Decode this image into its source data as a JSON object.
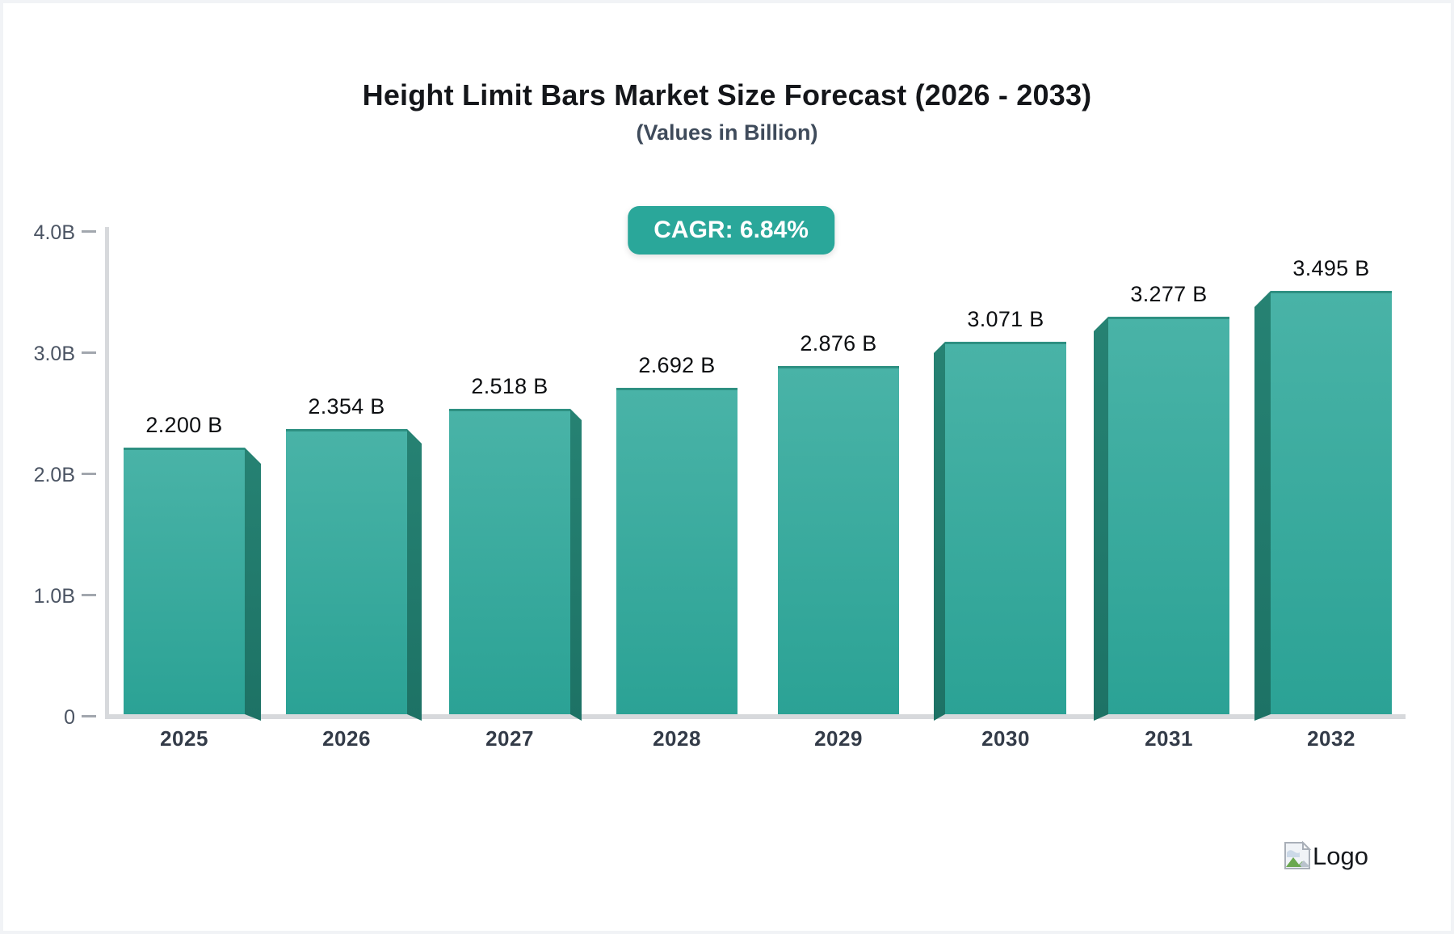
{
  "chart_data": {
    "type": "bar",
    "title": "Height Limit Bars Market Size Forecast (2026 - 2033)",
    "subtitle": "(Values in Billion)",
    "annotation": "CAGR: 6.84%",
    "categories": [
      "2025",
      "2026",
      "2027",
      "2028",
      "2029",
      "2030",
      "2031",
      "2032"
    ],
    "values": [
      2.2,
      2.354,
      2.518,
      2.692,
      2.876,
      3.071,
      3.277,
      3.495
    ],
    "value_labels": [
      "2.200 B",
      "2.354 B",
      "2.518 B",
      "2.692 B",
      "2.876 B",
      "3.071 B",
      "3.277 B",
      "3.495 B"
    ],
    "unit": "Billion",
    "xlabel": "",
    "ylabel": "",
    "ylim": [
      0,
      4.0
    ],
    "y_ticks": [
      {
        "label": "4.0B",
        "value": 4.0
      },
      {
        "label": "3.0B",
        "value": 3.0
      },
      {
        "label": "2.0B",
        "value": 2.0
      },
      {
        "label": "1.0B",
        "value": 1.0
      },
      {
        "label": "0",
        "value": 0.0
      }
    ],
    "grid": false,
    "legend": false
  },
  "colors": {
    "bar_face_top": "#49b3a7",
    "bar_face_bottom": "#2ba295",
    "bar_top_edge": "#2e9082",
    "bar_side_top": "#268273",
    "bar_side_bottom": "#1d7265",
    "badge_bg": "#2aa79a",
    "badge_text": "#ffffff",
    "axis": "#d7d9dc",
    "tick_dash": "#a2a7ae",
    "tick_label": "#4b5463",
    "value_label": "#0d0f12",
    "category_label": "#333b48"
  },
  "footer": {
    "logo_text": "Logo"
  }
}
